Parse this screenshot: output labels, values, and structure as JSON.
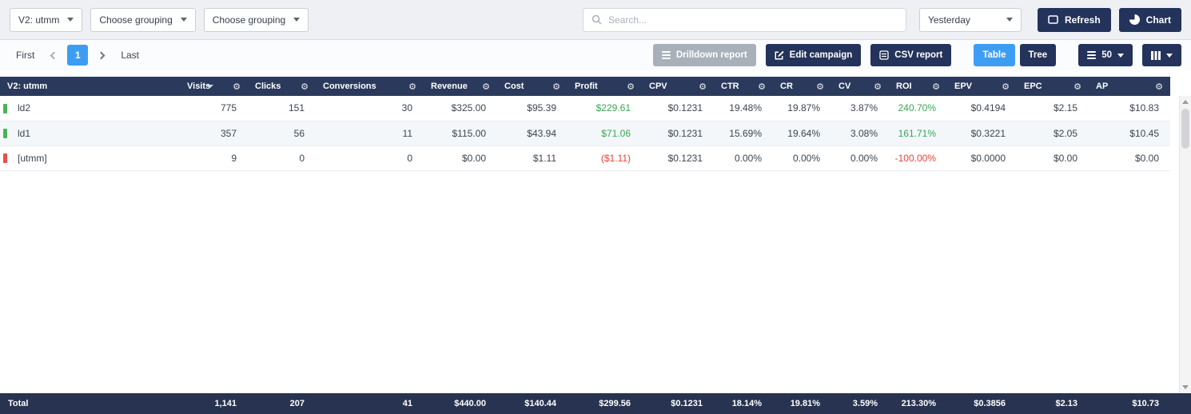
{
  "colors": {
    "navy": "#24335b",
    "table_header": "#2b3a5c",
    "footer": "#273350",
    "accent_blue": "#3d9df3",
    "positive_green": "#3aa654",
    "footer_green": "#3fd563",
    "negative_red": "#e8433c",
    "indicator_green": "#49b356",
    "indicator_red": "#e8504a",
    "toolbar_bg": "#eef0f4"
  },
  "toolbar": {
    "campaign_select": {
      "value": "V2: utmm"
    },
    "grouping_selects": [
      "Choose grouping",
      "Choose grouping"
    ],
    "search": {
      "placeholder": "Search..."
    },
    "date_select": {
      "value": "Yesterday"
    },
    "refresh_button": "Refresh",
    "chart_button": "Chart"
  },
  "pagination": {
    "first": "First",
    "current_page": "1",
    "last": "Last"
  },
  "actions": {
    "drilldown_button": "Drilldown report",
    "edit_campaign_button": "Edit campaign",
    "csv_button": "CSV report",
    "table_toggle": "Table",
    "tree_toggle": "Tree",
    "page_size": "50"
  },
  "table": {
    "header": [
      {
        "key": "name",
        "label": "V2: utmm",
        "gear": false,
        "sorted": false
      },
      {
        "key": "visits",
        "label": "Visits",
        "gear": true,
        "sorted": true
      },
      {
        "key": "clicks",
        "label": "Clicks",
        "gear": true,
        "sorted": false
      },
      {
        "key": "conversions",
        "label": "Conversions",
        "gear": true,
        "sorted": false
      },
      {
        "key": "revenue",
        "label": "Revenue",
        "gear": true,
        "sorted": false
      },
      {
        "key": "cost",
        "label": "Cost",
        "gear": true,
        "sorted": false
      },
      {
        "key": "profit",
        "label": "Profit",
        "gear": true,
        "sorted": false
      },
      {
        "key": "cpv",
        "label": "CPV",
        "gear": true,
        "sorted": false
      },
      {
        "key": "ctr",
        "label": "CTR",
        "gear": true,
        "sorted": false
      },
      {
        "key": "cr",
        "label": "CR",
        "gear": true,
        "sorted": false
      },
      {
        "key": "cv",
        "label": "CV",
        "gear": true,
        "sorted": false
      },
      {
        "key": "roi",
        "label": "ROI",
        "gear": true,
        "sorted": false
      },
      {
        "key": "epv",
        "label": "EPV",
        "gear": true,
        "sorted": false
      },
      {
        "key": "epc",
        "label": "EPC",
        "gear": true,
        "sorted": false
      },
      {
        "key": "ap",
        "label": "AP",
        "gear": true,
        "sorted": false
      }
    ],
    "rows": [
      {
        "indicator": "green",
        "trend": "pos",
        "name": "ld2",
        "visits": "775",
        "clicks": "151",
        "conversions": "30",
        "revenue": "$325.00",
        "cost": "$95.39",
        "profit": "$229.61",
        "cpv": "$0.1231",
        "ctr": "19.48%",
        "cr": "19.87%",
        "cv": "3.87%",
        "roi": "240.70%",
        "epv": "$0.4194",
        "epc": "$2.15",
        "ap": "$10.83"
      },
      {
        "indicator": "green",
        "trend": "pos",
        "name": "ld1",
        "visits": "357",
        "clicks": "56",
        "conversions": "11",
        "revenue": "$115.00",
        "cost": "$43.94",
        "profit": "$71.06",
        "cpv": "$0.1231",
        "ctr": "15.69%",
        "cr": "19.64%",
        "cv": "3.08%",
        "roi": "161.71%",
        "epv": "$0.3221",
        "epc": "$2.05",
        "ap": "$10.45"
      },
      {
        "indicator": "red",
        "trend": "neg",
        "name": "[utmm]",
        "visits": "9",
        "clicks": "0",
        "conversions": "0",
        "revenue": "$0.00",
        "cost": "$1.11",
        "profit": "($1.11)",
        "cpv": "$0.1231",
        "ctr": "0.00%",
        "cr": "0.00%",
        "cv": "0.00%",
        "roi": "-100.00%",
        "epv": "$0.0000",
        "epc": "$0.00",
        "ap": "$0.00"
      }
    ],
    "total": {
      "name": "Total",
      "visits": "1,141",
      "clicks": "207",
      "conversions": "41",
      "revenue": "$440.00",
      "cost": "$140.44",
      "profit": "$299.56",
      "cpv": "$0.1231",
      "ctr": "18.14%",
      "cr": "19.81%",
      "cv": "3.59%",
      "roi": "213.30%",
      "epv": "$0.3856",
      "epc": "$2.13",
      "ap": "$10.73"
    }
  }
}
